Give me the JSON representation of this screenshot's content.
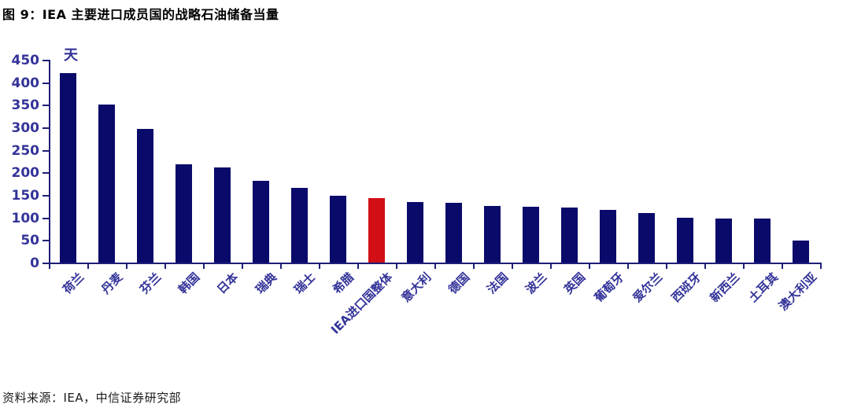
{
  "title": "图 9：IEA 主要进口成员国的战略石油储备当量",
  "source": "资料来源：IEA，中信证券研究部",
  "colors": {
    "bar": "#0A0A6B",
    "highlight_bar": "#D20F15",
    "axis": "#1F1F78",
    "tick_label": "#333399",
    "rule_red": "#CC0000"
  },
  "chart_data": {
    "type": "bar",
    "title": "IEA 主要进口成员国的战略石油储备当量",
    "ylabel": "天",
    "xlabel": "",
    "ylim": [
      0,
      450
    ],
    "yticks": [
      0,
      50,
      100,
      150,
      200,
      250,
      300,
      350,
      400,
      450
    ],
    "grid": false,
    "legend": "none",
    "categories": [
      "荷兰",
      "丹麦",
      "芬兰",
      "韩国",
      "日本",
      "瑞典",
      "瑞士",
      "希腊",
      "IEA进口国整体",
      "意大利",
      "德国",
      "法国",
      "波兰",
      "英国",
      "葡萄牙",
      "爱尔兰",
      "西班牙",
      "新西兰",
      "土耳其",
      "澳大利亚"
    ],
    "values": [
      420,
      350,
      297,
      218,
      211,
      182,
      166,
      148,
      143,
      135,
      133,
      125,
      124,
      122,
      116,
      110,
      100,
      98,
      97,
      49
    ],
    "highlight_index": 8,
    "highlight_category": "IEA进口国整体"
  }
}
